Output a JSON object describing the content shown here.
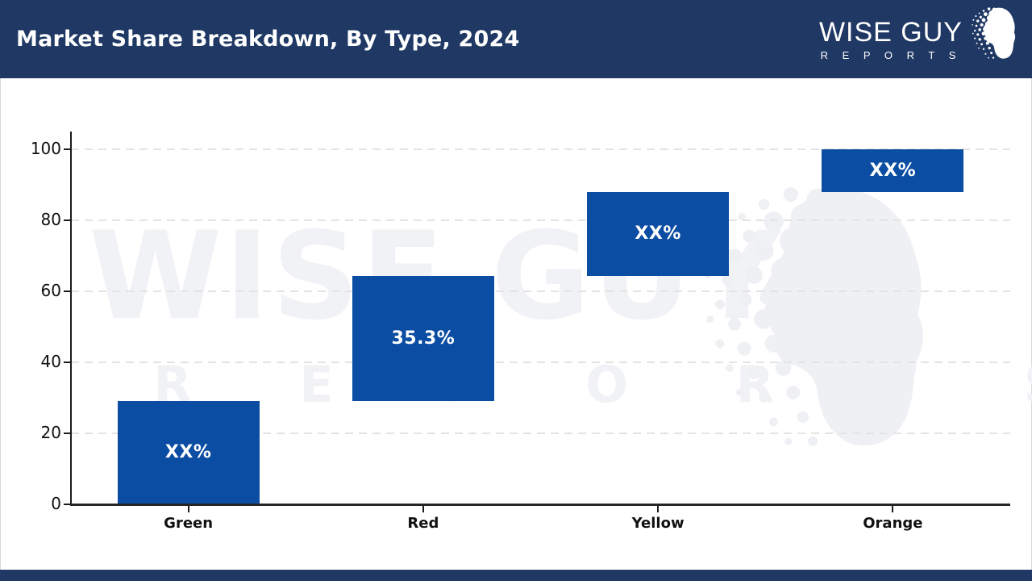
{
  "header": {
    "title": "Market Share Breakdown, By Type, 2024",
    "brand_name": "WISE GUY",
    "brand_sub": "R E P O R T S"
  },
  "watermark": {
    "line1": "WISE GUY",
    "line2": "R E P O R T S"
  },
  "chart_data": {
    "type": "bar",
    "subtype": "waterfall",
    "title": "Market Share Breakdown, By Type, 2024",
    "categories": [
      "Green",
      "Red",
      "Yellow",
      "Orange"
    ],
    "segments": [
      {
        "category": "Green",
        "start": 0,
        "end": 29.1,
        "value": 29.1,
        "label": "XX%"
      },
      {
        "category": "Red",
        "start": 29.1,
        "end": 64.4,
        "value": 35.3,
        "label": "35.3%"
      },
      {
        "category": "Yellow",
        "start": 64.4,
        "end": 88.0,
        "value": 23.6,
        "label": "XX%"
      },
      {
        "category": "Orange",
        "start": 88.0,
        "end": 100.0,
        "value": 12.0,
        "label": "XX%"
      }
    ],
    "ylim": [
      0,
      100
    ],
    "yticks": [
      0,
      20,
      40,
      60,
      80,
      100
    ],
    "xlabel": "",
    "ylabel": "",
    "grid": "horizontal-dashed",
    "legend": "none",
    "bar_color": "#0B4DA2"
  },
  "colors": {
    "header_bg": "#1F3864",
    "footer_bg": "#1F3864",
    "bar": "#0B4DA2",
    "watermark": "#F1F2F5",
    "gridline": "#E3E3E3",
    "axis": "#1C1C1C",
    "title_text": "#FFFFFF",
    "tick_text": "#111111"
  }
}
